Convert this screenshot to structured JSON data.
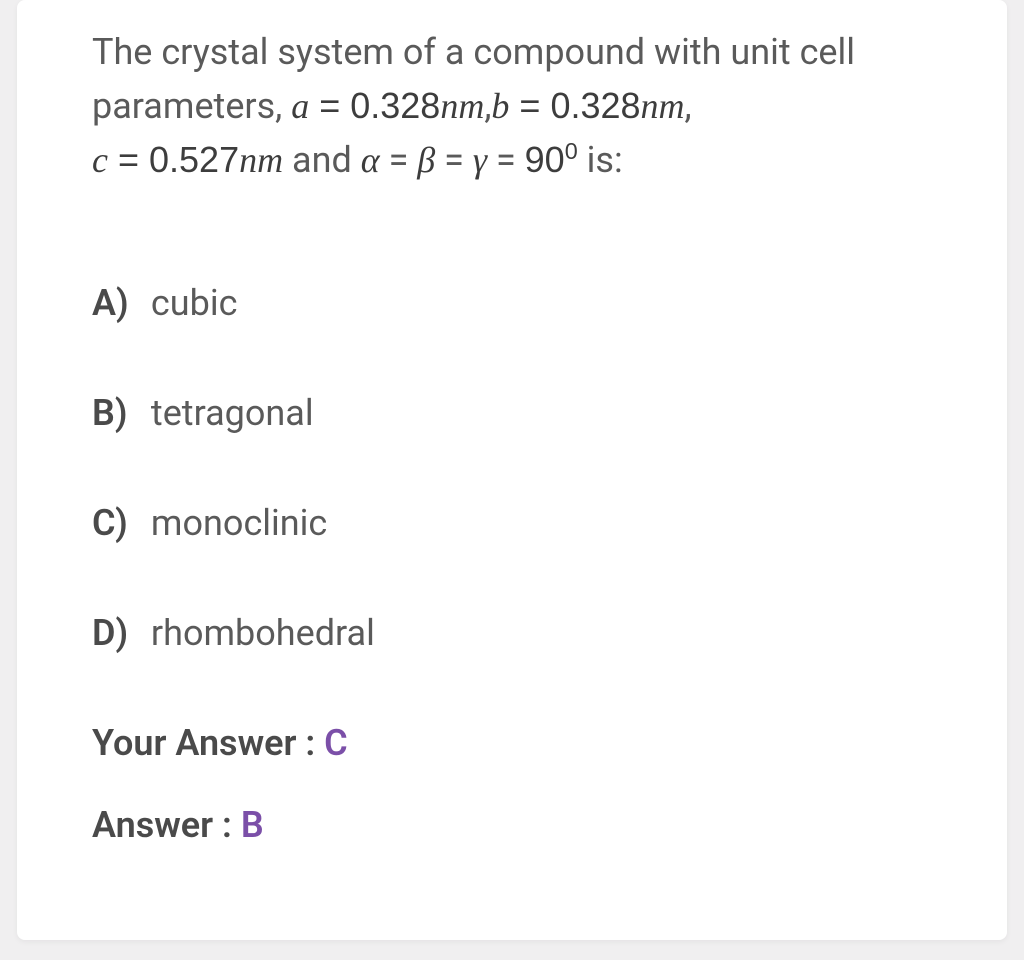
{
  "question": {
    "line1_prefix": "The crystal system of a compound with unit cell",
    "line2_prefix": "parameters, ",
    "param_a_var": "a",
    "param_a_val": " = 0.328",
    "param_a_unit": "nm",
    "comma1": ",",
    "param_b_var": "b",
    "param_b_val": " = 0.328",
    "param_b_unit": "nm",
    "comma2": ",",
    "param_c_var": "c",
    "param_c_val": " = 0.527",
    "param_c_unit": "nm",
    "and_text": " and ",
    "alpha": "α",
    "eq1": " = ",
    "beta": "β",
    "eq2": " = ",
    "gamma": "γ",
    "eq3": " = ",
    "angle_val": "90",
    "angle_sup": "0",
    "is_text": " is:"
  },
  "options": {
    "a": {
      "letter": "A)",
      "text": " cubic"
    },
    "b": {
      "letter": "B)",
      "text": " tetragonal"
    },
    "c": {
      "letter": "C)",
      "text": " monoclinic"
    },
    "d": {
      "letter": "D)",
      "text": " rhombohedral"
    }
  },
  "your_answer": {
    "label": "Your Answer : ",
    "value": "C"
  },
  "answer": {
    "label": "Answer : ",
    "value": "B"
  },
  "colors": {
    "background": "#f0eff0",
    "card": "#ffffff",
    "text": "#5a5a5a",
    "bold_text": "#4a4a4a",
    "accent": "#7b4fa8"
  }
}
